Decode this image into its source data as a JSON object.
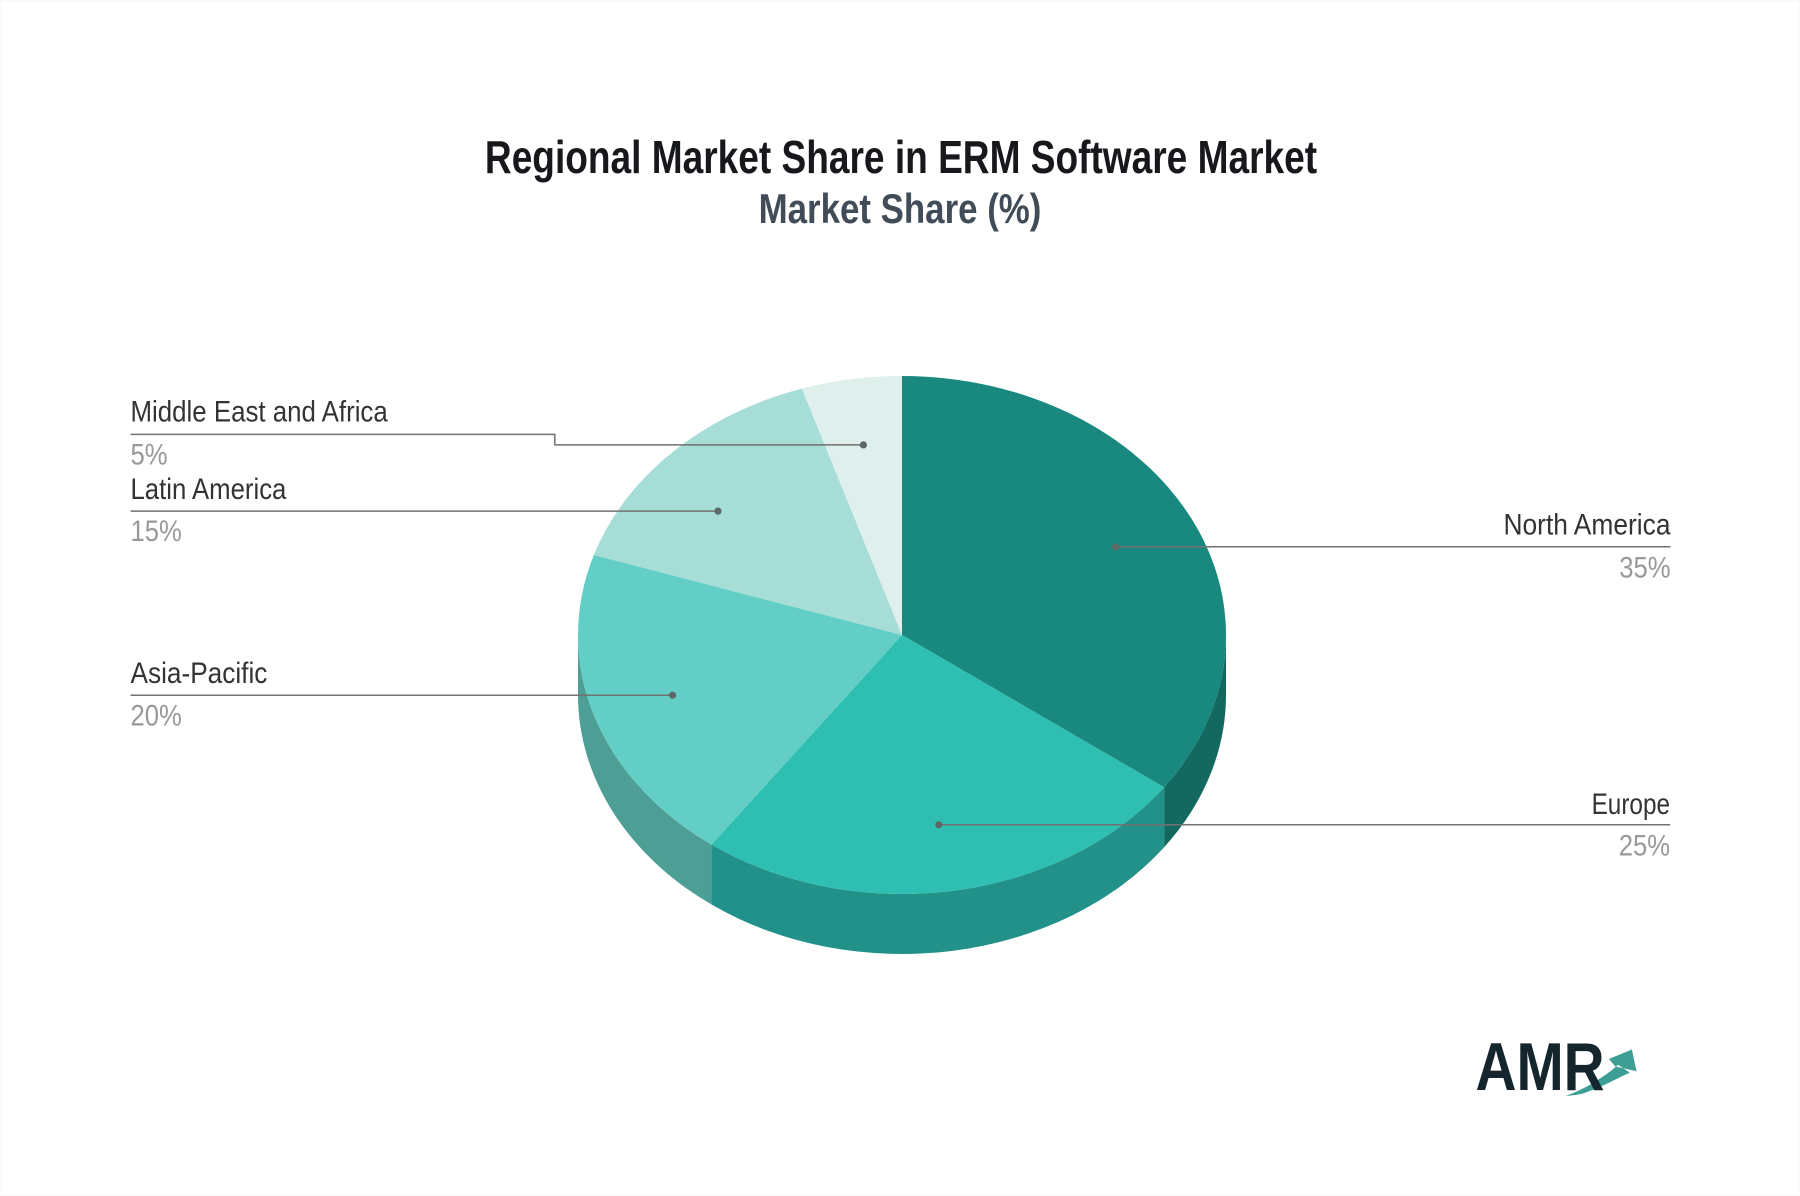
{
  "title": "Regional Market Share in ERM Software Market",
  "subtitle": "Market Share (%)",
  "logo": {
    "text": "AMR",
    "arrow_color": "#3c9e95",
    "text_color": "#14252d"
  },
  "colors": {
    "background": "#ffffff",
    "edge_border": "#f8fafc",
    "title_text": "#16181c",
    "subtitle_text": "#414c58",
    "label_text": "#333333",
    "percent_text": "#999999",
    "leader_line": "#717171"
  },
  "chart_data": {
    "type": "pie",
    "style": "pie-3d",
    "title": "Regional Market Share in ERM Software Market",
    "subtitle": "Market Share (%)",
    "unit": "%",
    "start_angle_deg": 0,
    "direction": "clockwise-from-top",
    "legend_position": "callout-labels",
    "categories": [
      "North America",
      "Europe",
      "Asia-Pacific",
      "Latin America",
      "Middle East and Africa"
    ],
    "values": [
      35,
      25,
      20,
      15,
      5
    ],
    "labels": [
      "35%",
      "25%",
      "20%",
      "15%",
      "5%"
    ],
    "colors": [
      "#19897f",
      "#2fbfb2",
      "#63cec5",
      "#a6ddd6",
      "#dfefec"
    ],
    "side_colors": [
      "#13695f",
      "#229189",
      "#4d9f96",
      null,
      null
    ]
  }
}
